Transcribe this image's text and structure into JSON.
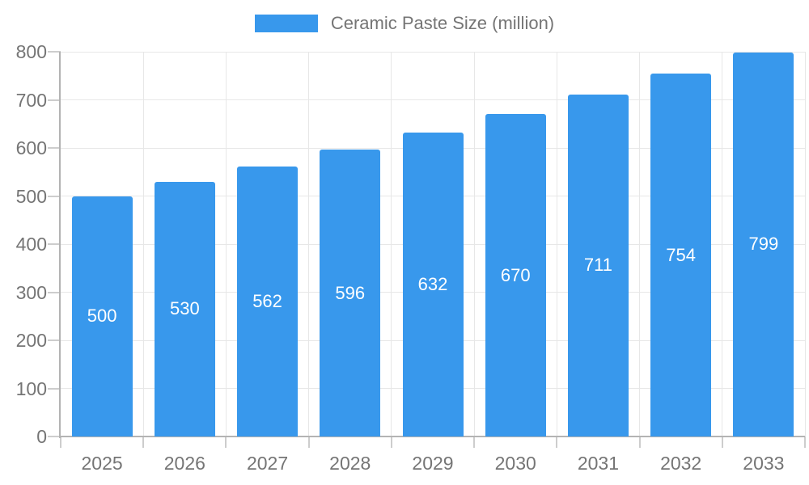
{
  "legend": {
    "label": "Ceramic Paste Size (million)"
  },
  "chart_data": {
    "type": "bar",
    "title": "",
    "series_name": "Ceramic Paste Size (million)",
    "categories": [
      "2025",
      "2026",
      "2027",
      "2028",
      "2029",
      "2030",
      "2031",
      "2032",
      "2033"
    ],
    "values": [
      500,
      530,
      562,
      596,
      632,
      670,
      711,
      754,
      799
    ],
    "value_labels_shown": true,
    "xlabel": "",
    "ylabel": "",
    "ylim": [
      0,
      800
    ],
    "ytick_step": 100,
    "yticks": [
      0,
      100,
      200,
      300,
      400,
      500,
      600,
      700,
      800
    ],
    "grid": true,
    "legend_position": "top-center",
    "bar_color": "#3898ec",
    "value_label_color": "#ffffff",
    "axis_text_color": "#757575",
    "gridline_color": "#e7e7e7",
    "axis_line_color": "#b3b3b3",
    "tick_color": "#cdcdcd",
    "background_color": "#ffffff"
  }
}
